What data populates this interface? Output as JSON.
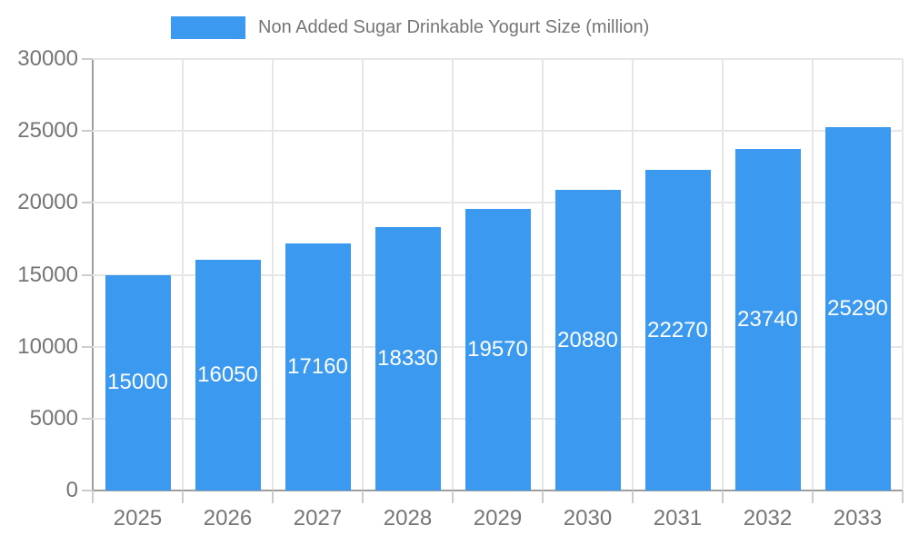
{
  "legend": {
    "label": "Non Added Sugar Drinkable Yogurt Size (million)",
    "swatch_color": "#3B99EF"
  },
  "colors": {
    "bar": "#3B99EF",
    "axis_text": "#757575",
    "grid_line": "#e6e6e6",
    "axis_line": "#9e9e9e",
    "tick_mark": "#cccccc",
    "value_label": "#ffffff",
    "background": "#ffffff"
  },
  "chart_data": {
    "type": "bar",
    "title": "",
    "categories": [
      "2025",
      "2026",
      "2027",
      "2028",
      "2029",
      "2030",
      "2031",
      "2032",
      "2033"
    ],
    "series": [
      {
        "name": "Non Added Sugar Drinkable Yogurt Size (million)",
        "values": [
          15000,
          16050,
          17160,
          18330,
          19570,
          20880,
          22270,
          23740,
          25290
        ],
        "color": "#3B99EF"
      }
    ],
    "xlabel": "",
    "ylabel": "",
    "ylim": [
      0,
      30000
    ],
    "yticks": [
      0,
      5000,
      10000,
      15000,
      20000,
      25000,
      30000
    ],
    "grid": "horizontal and vertical light gray gridlines",
    "legend_position": "top-center",
    "value_labels": "white, horizontally and vertically centered inside bars"
  }
}
